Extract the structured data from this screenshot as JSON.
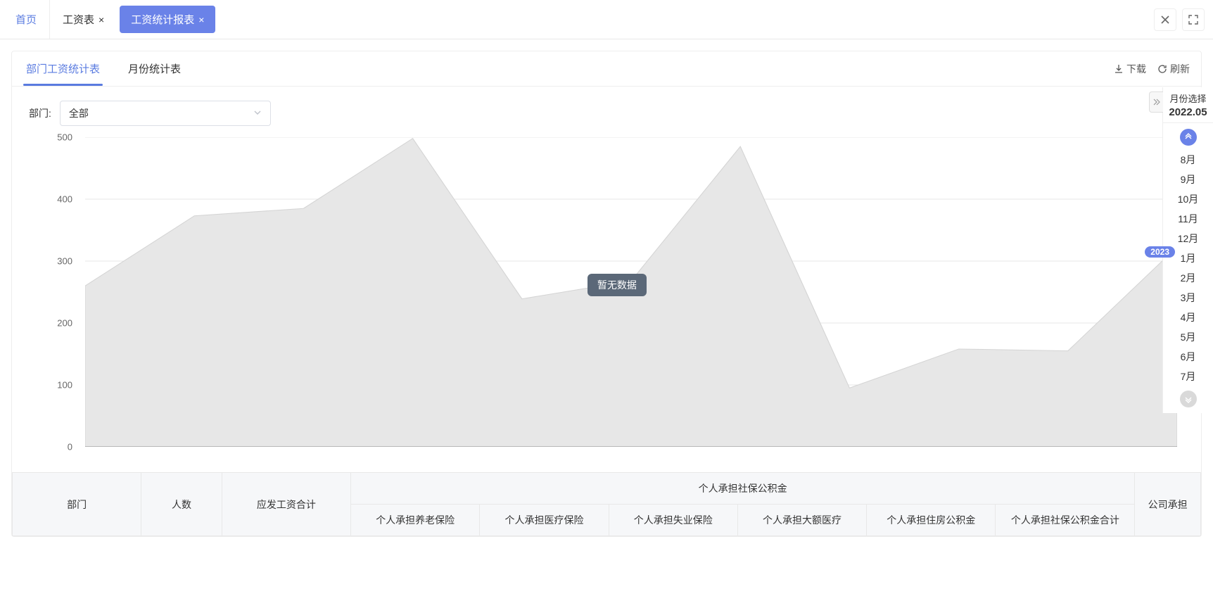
{
  "top_tabs": {
    "home": "首页",
    "salary": "工资表",
    "report": "工资统计报表"
  },
  "sub_tabs": {
    "dept": "部门工资统计表",
    "month": "月份统计表"
  },
  "actions": {
    "download": "下载",
    "refresh": "刷新"
  },
  "filter": {
    "label": "部门:",
    "value": "全部"
  },
  "chart": {
    "type": "area",
    "ylim": [
      0,
      500
    ],
    "yticks": [
      0,
      100,
      200,
      300,
      400,
      500
    ],
    "values": [
      260,
      373,
      385,
      498,
      239,
      268,
      485,
      95,
      158,
      155,
      323
    ],
    "fill_color": "#e7e7e7",
    "stroke_color": "#d4d4d4",
    "axis_color": "#666666",
    "split_line_color": "#e7e7e7",
    "tooltip_text": "暂无数据",
    "tooltip_bg": "#5b6878",
    "tooltip_color": "#ffffff"
  },
  "month_picker": {
    "title": "月份选择",
    "selected": "2022.05",
    "year_badge": "2023",
    "items": [
      "8月",
      "9月",
      "10月",
      "11月",
      "12月",
      "1月",
      "2月",
      "3月",
      "4月",
      "5月",
      "6月",
      "7月"
    ],
    "year_badge_before_index": 5
  },
  "table": {
    "cols_fixed": [
      "部门",
      "人数",
      "应发工资合计"
    ],
    "group_header": "个人承担社保公积金",
    "group_cols": [
      "个人承担养老保险",
      "个人承担医疗保险",
      "个人承担失业保险",
      "个人承担大额医疗",
      "个人承担住房公积金",
      "个人承担社保公积金合计"
    ],
    "overflow_col": "公司承担"
  },
  "colors": {
    "accent": "#6a82e8",
    "link": "#5a7be0"
  }
}
